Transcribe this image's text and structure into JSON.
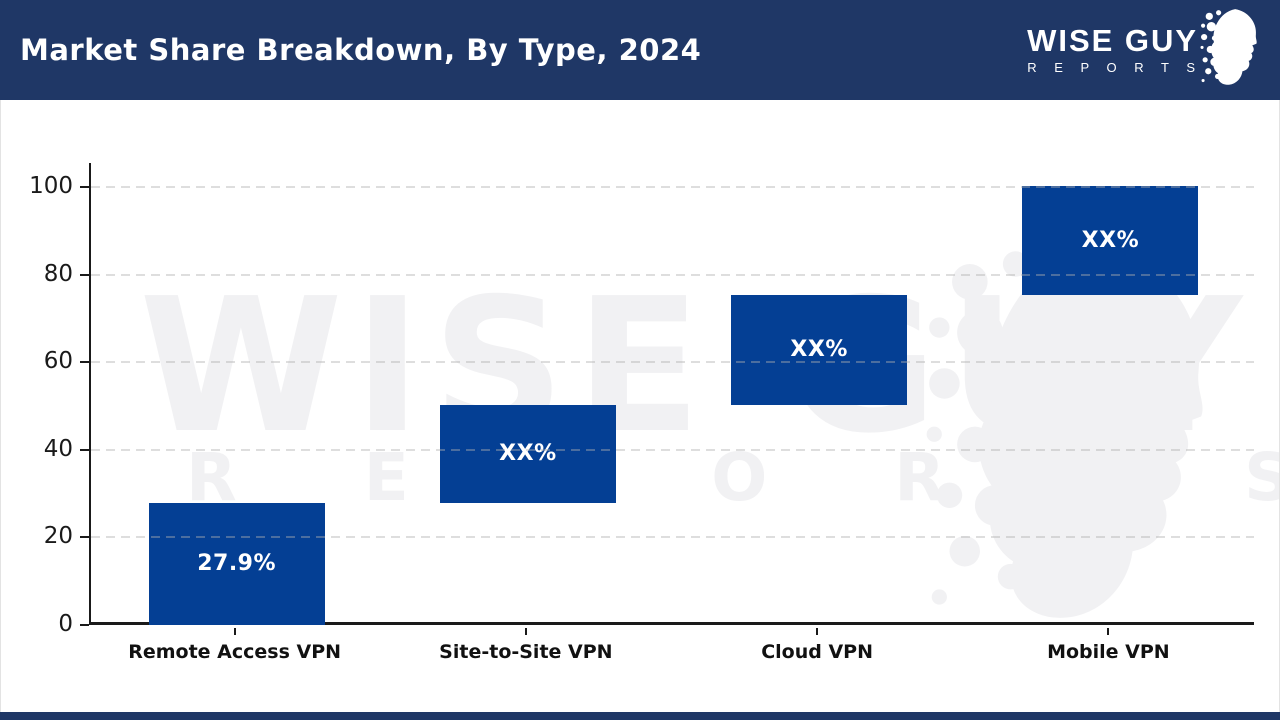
{
  "header": {
    "title": "Market Share Breakdown, By Type, 2024",
    "logo": {
      "line1": "WISE GUY",
      "line2": "R E P O R T S"
    }
  },
  "watermark": {
    "line1": "WISE GUY",
    "line2": "R E P O R T S"
  },
  "colors": {
    "header_bg": "#1f3766",
    "bar_blue": "#043f94",
    "watermark_gray": "#f1f1f3",
    "grid_gray": "rgba(175,175,175,0.42)"
  },
  "chart_data": {
    "type": "bar",
    "subtype": "waterfall-stacked-percent",
    "title": "Market Share Breakdown, By Type, 2024",
    "categories": [
      "Remote Access VPN",
      "Site-to-Site VPN",
      "Cloud VPN",
      "Mobile VPN"
    ],
    "segments": [
      {
        "start": 0,
        "end": 27.9,
        "label": "27.9%"
      },
      {
        "start": 27.9,
        "end": 50.2,
        "label": "XX%"
      },
      {
        "start": 50.2,
        "end": 75.4,
        "label": "XX%"
      },
      {
        "start": 75.4,
        "end": 100.2,
        "label": "XX%"
      }
    ],
    "xlabel": "",
    "ylabel": "",
    "yticks": [
      0,
      20,
      40,
      60,
      80,
      100
    ],
    "ylim": [
      0,
      105.5
    ],
    "grid": "dashed-horizontal-over-bars",
    "legend": "none",
    "bar_color": "#043f94"
  }
}
